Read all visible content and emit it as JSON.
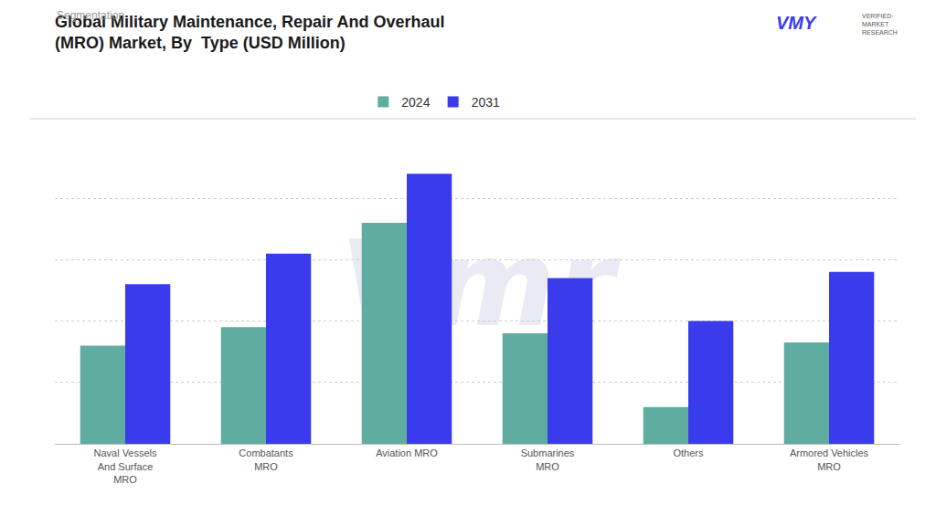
{
  "chart_data": {
    "type": "bar",
    "title": "Global Military Maintenance, Repair And Overhaul\n(MRO) Market, By  Type (USD Million)",
    "subtitle": "Segmentation",
    "categories": [
      "Naval Vessels\nAnd Surface\nMRO",
      "Combatants\nMRO",
      "Aviation MRO",
      "Submarines\nMRO",
      "Others",
      "Armored Vehicles\nMRO"
    ],
    "series": [
      {
        "name": "2024",
        "color": "#5FADA0",
        "values": [
          32,
          38,
          72,
          36,
          12,
          33
        ]
      },
      {
        "name": "2031",
        "color": "#3B3BEE",
        "values": [
          52,
          62,
          88,
          54,
          40,
          56
        ]
      }
    ],
    "ylim": [
      0,
      100
    ],
    "yticks": [
      20,
      40,
      60,
      80,
      100
    ],
    "grid": true,
    "tick_labels": "x",
    "legend": "top",
    "annotations": [
      "Vmr",
      "VMY",
      "VERIFIED·\nMARKET\nRESEARCH"
    ]
  }
}
